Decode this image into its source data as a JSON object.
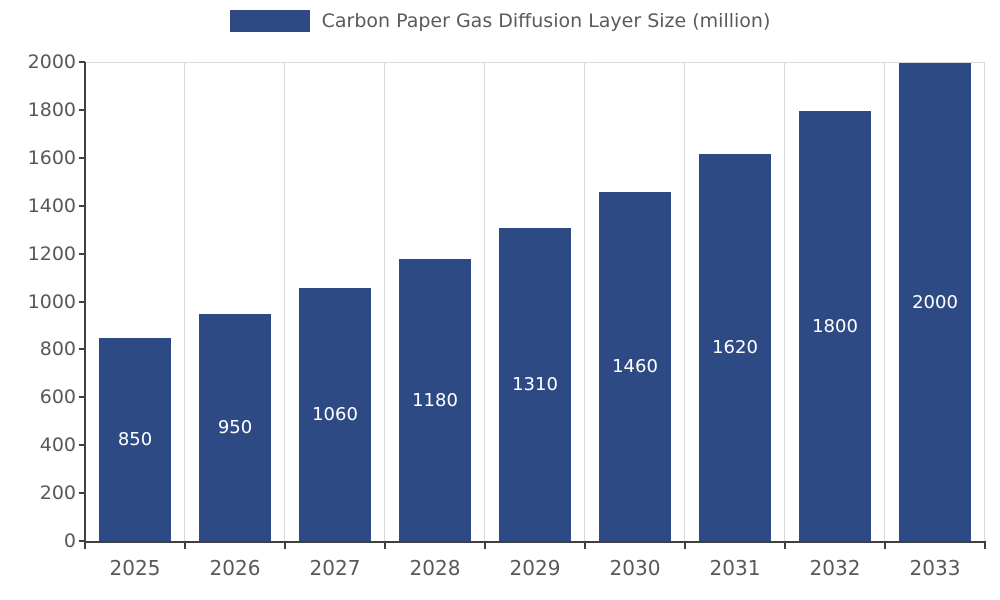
{
  "legend": {
    "label": "Carbon Paper Gas Diffusion Layer Size (million)"
  },
  "chart_data": {
    "type": "bar",
    "title": "Carbon Paper Gas Diffusion Layer Size (million)",
    "categories": [
      "2025",
      "2026",
      "2027",
      "2028",
      "2029",
      "2030",
      "2031",
      "2032",
      "2033"
    ],
    "values": [
      850,
      950,
      1060,
      1180,
      1310,
      1460,
      1620,
      1800,
      2000
    ],
    "value_labels": [
      "850",
      "950",
      "1060",
      "1180",
      "1310",
      "1460",
      "1620",
      "1800",
      "2000"
    ],
    "xlabel": "",
    "ylabel": "",
    "ylim": [
      0,
      2000
    ],
    "yticks": [
      0,
      200,
      400,
      600,
      800,
      1000,
      1200,
      1400,
      1600,
      1800,
      2000
    ],
    "grid": true,
    "gridlines": "vertical",
    "legend_position": "top",
    "bar_color": "#2e4a85",
    "value_label_color": "#ffffff",
    "axis_color": "#404040",
    "gridline_color": "#d9d9d9",
    "tick_label_color": "#595959"
  }
}
